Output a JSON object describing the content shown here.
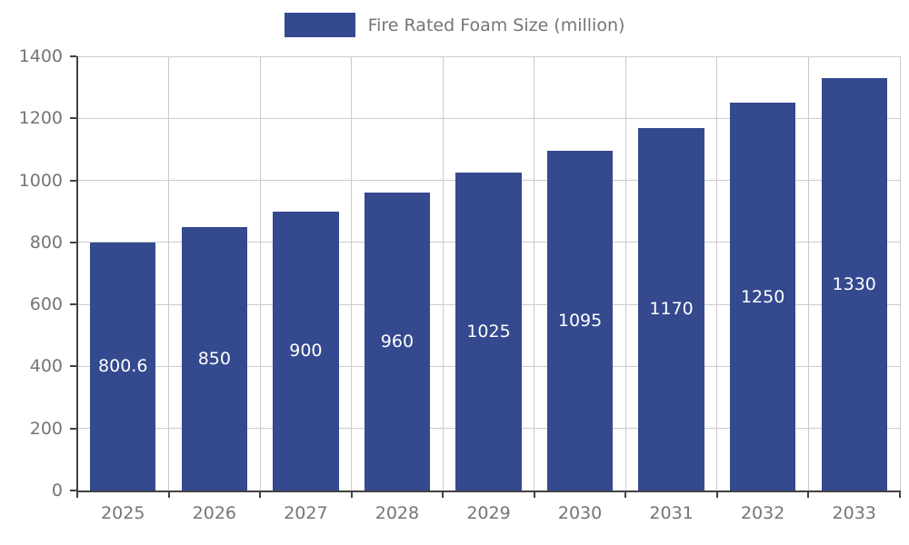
{
  "legend": {
    "label": "Fire Rated Foam Size (million)"
  },
  "colors": {
    "bar": "#34498E",
    "grid": "#cccccc",
    "axis": "#424242",
    "tick_text": "#757575",
    "bar_label_text": "#ffffff",
    "background": "#ffffff"
  },
  "chart_data": {
    "type": "bar",
    "title": "Fire Rated Foam Size (million)",
    "categories": [
      "2025",
      "2026",
      "2027",
      "2028",
      "2029",
      "2030",
      "2031",
      "2032",
      "2033"
    ],
    "values": [
      800.6,
      850,
      900,
      960,
      1025,
      1095,
      1170,
      1250,
      1330
    ],
    "value_labels": [
      "800.6",
      "850",
      "900",
      "960",
      "1025",
      "1095",
      "1170",
      "1250",
      "1330"
    ],
    "xlabel": "",
    "ylabel": "",
    "ylim": [
      0,
      1400
    ],
    "ytick_step": 200,
    "ytick_labels": [
      "0",
      "200",
      "400",
      "600",
      "800",
      "1000",
      "1200",
      "1400"
    ],
    "grid": true,
    "legend_position": "top-center",
    "bar_label_position": "inside-center"
  }
}
